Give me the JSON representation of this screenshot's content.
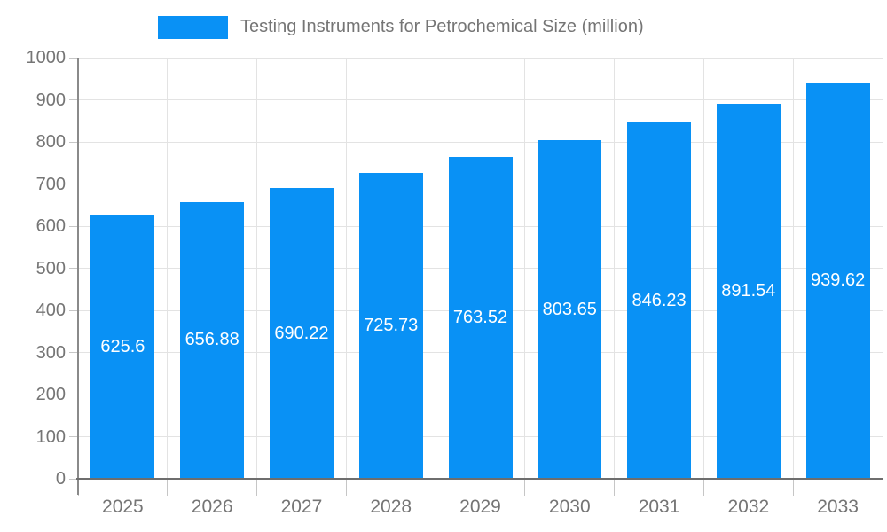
{
  "legend": {
    "label": "Testing Instruments for Petrochemical Size (million)"
  },
  "chart_data": {
    "type": "bar",
    "title": "Testing Instruments for Petrochemical Size (million)",
    "categories": [
      "2025",
      "2026",
      "2027",
      "2028",
      "2029",
      "2030",
      "2031",
      "2032",
      "2033"
    ],
    "values": [
      625.6,
      656.88,
      690.22,
      725.73,
      763.52,
      803.65,
      846.23,
      891.54,
      939.62
    ],
    "series": [
      {
        "name": "Testing Instruments for Petrochemical Size (million)",
        "values": [
          625.6,
          656.88,
          690.22,
          725.73,
          763.52,
          803.65,
          846.23,
          891.54,
          939.62
        ]
      }
    ],
    "xlabel": "",
    "ylabel": "",
    "ylim": [
      0,
      1000
    ],
    "y_tick_step": 100,
    "y_tick_labels": [
      "0",
      "100",
      "200",
      "300",
      "400",
      "500",
      "600",
      "700",
      "800",
      "900",
      "1000"
    ],
    "grid": true,
    "legend_position": "top",
    "value_labels": "inside-center",
    "colors": {
      "bar": "#0991F5",
      "value_label": "#FFFFFF",
      "grid": "#E3E3E3",
      "tick": "#C6C6C6",
      "axis_y": "#8A8A8A",
      "axis_x": "#6E6E6E",
      "text": "#757575"
    }
  }
}
